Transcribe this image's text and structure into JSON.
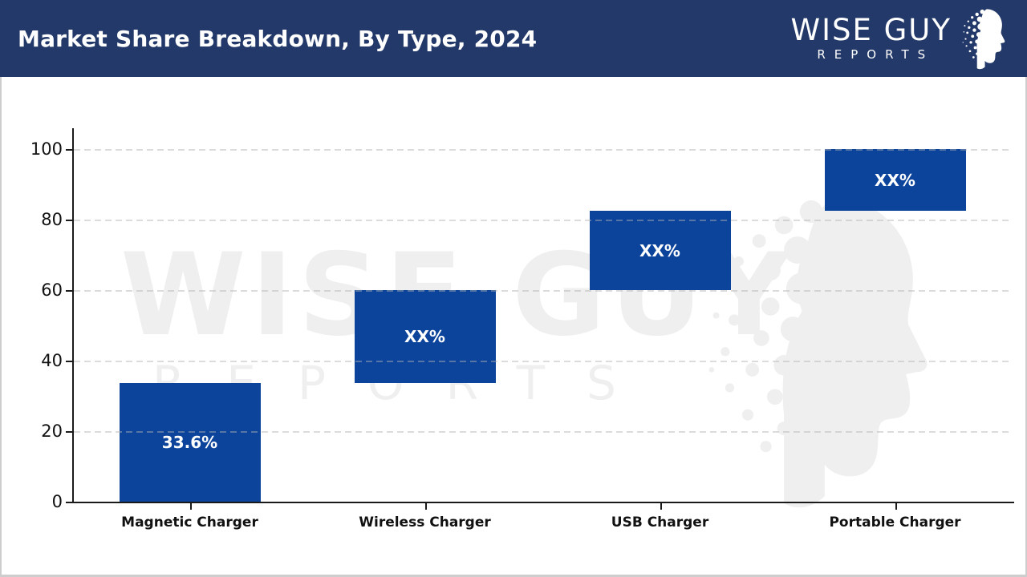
{
  "header": {
    "title": "Market Share Breakdown, By Type, 2024",
    "logo": {
      "name_top": "WISE GUY",
      "name_bottom": "REPORTS"
    }
  },
  "watermark": {
    "text_top": "WISE GUY",
    "text_bottom": "REPORTS"
  },
  "colors": {
    "header_bg": "#23396a",
    "bar_fill": "#0c449c",
    "bar_label_text": "#ffffff",
    "axis": "#1a1a1a",
    "gridline": "#dcdcdc",
    "edge_border": "#cdcdcd",
    "watermark": "#efefef"
  },
  "chart_data": {
    "type": "bar",
    "subtype": "waterfall",
    "title": "Market Share Breakdown, By Type, 2024",
    "categories": [
      "Magnetic Charger",
      "Wireless Charger",
      "USB Charger",
      "Portable Charger"
    ],
    "segments": [
      {
        "category": "Magnetic Charger",
        "start": 0,
        "end": 33.6,
        "label": "33.6%"
      },
      {
        "category": "Wireless Charger",
        "start": 33.6,
        "end": 60.0,
        "label": "XX%"
      },
      {
        "category": "USB Charger",
        "start": 60.0,
        "end": 82.4,
        "label": "XX%"
      },
      {
        "category": "Portable Charger",
        "start": 82.4,
        "end": 100.0,
        "label": "XX%"
      }
    ],
    "yticks": [
      0,
      20,
      40,
      60,
      80,
      100
    ],
    "ylim": [
      0,
      106
    ],
    "xlabel": "",
    "ylabel": "",
    "grid": "horizontal-dashed",
    "legend": "none"
  }
}
